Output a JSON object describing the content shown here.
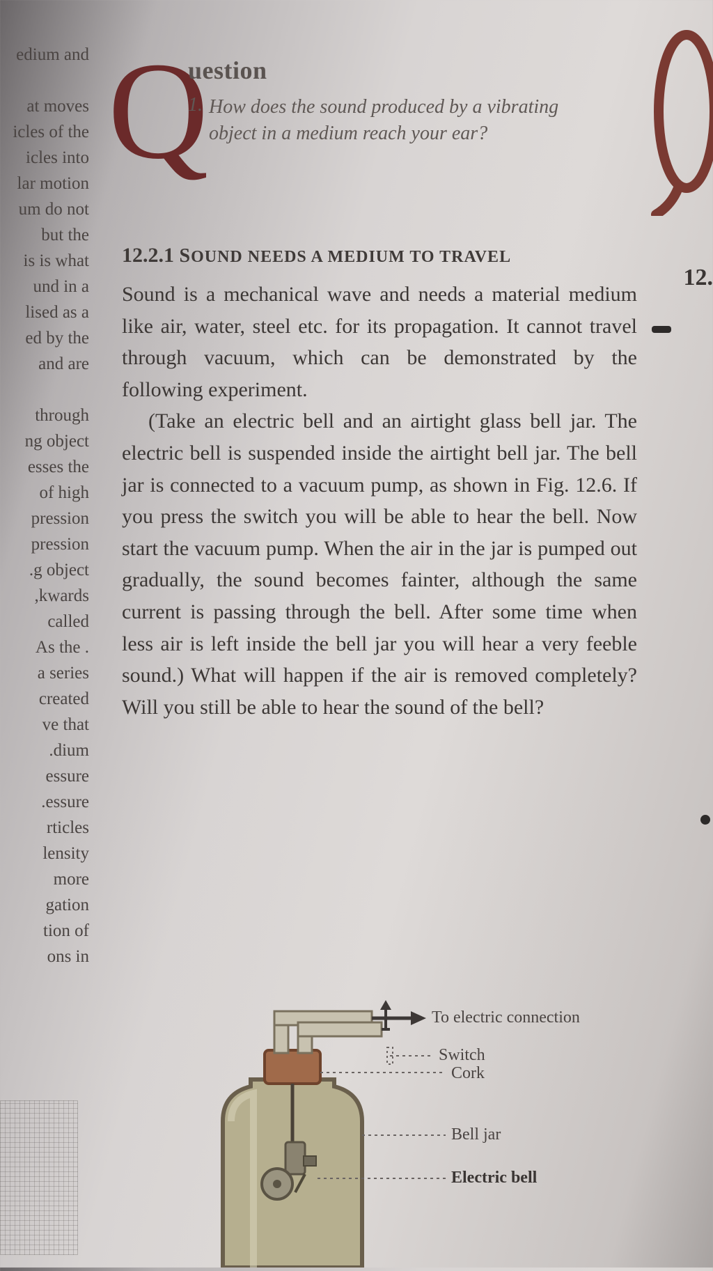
{
  "left_column": [
    "edium and",
    "",
    "at moves",
    "icles of the",
    "icles into",
    "lar motion",
    "um do not",
    "but the",
    "is is what",
    "und in a",
    "lised as a",
    "ed by the",
    "and are",
    "",
    "through",
    "ng object",
    "esses the",
    "of high",
    "pression",
    "pression",
    "g object.",
    "kwards,",
    "called",
    ". As the",
    "a series",
    "created",
    "ve that",
    "dium.",
    "essure",
    "essure.",
    "rticles",
    "lensity",
    "more",
    "gation",
    "tion of",
    "ons in"
  ],
  "question": {
    "label": "uestion",
    "number": "1.",
    "text": "How does the sound produced by a vibrating object in a medium reach your ear?"
  },
  "section": {
    "number": "12.2.1",
    "title": "Sound needs a medium to travel"
  },
  "right_num": "12.",
  "paragraphs": [
    "Sound is a mechanical wave and needs a material medium like air, water, steel etc. for its propagation. It cannot travel through vacuum, which can be demonstrated by the following experiment.",
    "(Take an electric bell and an airtight glass bell jar. The electric bell is suspended inside the airtight bell jar. The bell jar is connected to a vacuum pump, as shown in Fig. 12.6. If you press the switch you will be able to hear the bell. Now start the vacuum pump. When the air in the jar is pumped out gradually, the sound becomes fainter, although the same current is passing through the bell. After some time when less air is left inside the bell jar you will hear a very feeble sound.) What will happen if the air is removed completely? Will you still be able to hear the sound of the bell?"
  ],
  "figure": {
    "labels": {
      "connection": "To electric connection",
      "switch": "Switch",
      "cork": "Cork",
      "belljar": "Bell jar",
      "bell": "Electric bell"
    },
    "colors": {
      "jar_fill": "#b6af8f",
      "jar_stroke": "#6a5f4c",
      "cork_fill": "#a06a4a",
      "cork_stroke": "#6e432c",
      "tube_fill": "#c8c2b0",
      "tube_stroke": "#7a715e",
      "bell_fill": "#8a8370",
      "bell_stroke": "#5a5344",
      "wire": "#4a4238",
      "arrow": "#3d3836",
      "label_line": "#6a6462"
    }
  }
}
